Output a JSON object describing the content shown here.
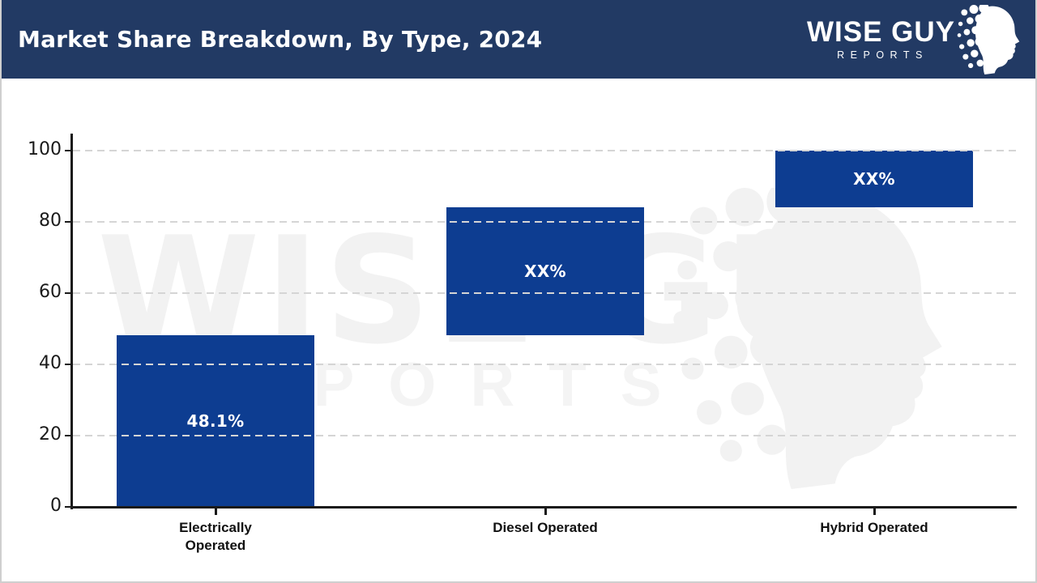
{
  "header": {
    "title": "Market Share Breakdown, By Type, 2024",
    "brand": {
      "name": "Wise Guy Reports",
      "line1": "WISE GUY",
      "line2": "REPORTS"
    }
  },
  "watermark": {
    "line1": "WISE GU",
    "line2": "REPORTS"
  },
  "chart_data": {
    "type": "bar",
    "subtype": "waterfall-floating-segments",
    "title": "Market Share Breakdown, By Type, 2024",
    "categories": [
      "Electrically Operated",
      "Diesel Operated",
      "Hybrid Operated"
    ],
    "segments": [
      {
        "label": "Electrically Operated",
        "axis_label": "Electrically\nOperated",
        "start": 0,
        "end": 48.1,
        "value": 48.1,
        "value_label": "48.1%"
      },
      {
        "label": "Diesel Operated",
        "axis_label": "Diesel Operated",
        "start": 48.1,
        "end": 84.1,
        "value": 36.0,
        "value_label": "XX%"
      },
      {
        "label": "Hybrid Operated",
        "axis_label": "Hybrid Operated",
        "start": 84.1,
        "end": 100,
        "value": 15.9,
        "value_label": "XX%"
      }
    ],
    "ylim": [
      0,
      100
    ],
    "yticks": [
      0,
      20,
      40,
      60,
      80,
      100
    ],
    "grid": "horizontal-dashed",
    "legend": "none",
    "bar_color": "#0d3d91",
    "bar_label_color": "#ffffff",
    "axis_color": "#1a1a1a",
    "grid_color": "#d5d5d5"
  },
  "colors": {
    "header_bg": "#223a64",
    "background": "#ffffff",
    "watermark": "#f2f2f2",
    "edge_border": "#cfcfcf"
  }
}
